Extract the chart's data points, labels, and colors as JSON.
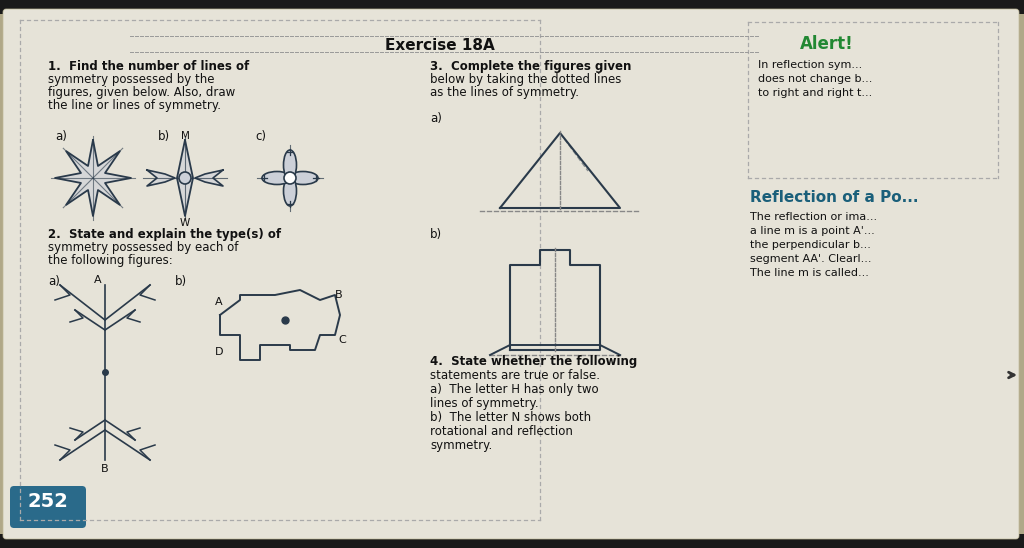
{
  "title": "Exercise 18A",
  "bg_main": "#e0ddd4",
  "bg_panel": "#d8d4c8",
  "text_dark": "#111111",
  "shape_color": "#2a3a4a",
  "teal": "#1a5f7a",
  "green": "#228833",
  "q1_lines": [
    "1.  Find the number of lines of",
    "symmetry possessed by the",
    "figures, given below. Also, draw",
    "the line or lines of symmetry."
  ],
  "q2_lines": [
    "2.  State and explain the type(s) of",
    "symmetry possessed by each of",
    "the following figures:"
  ],
  "q3_lines": [
    "3.  Complete the figures given",
    "below by taking the dotted lines",
    "as the lines of symmetry."
  ],
  "q4_lines": [
    "4.  State whether the following",
    "statements are true or false.",
    "a)  The letter H has only two",
    "lines of symmetry.",
    "b)  The letter N shows both",
    "rotational and reflection",
    "symmetry."
  ],
  "alert_title": "Alert!",
  "alert_lines": [
    "In reflection sym...",
    "does not change b...",
    "to right and right t..."
  ],
  "reflect_title": "Reflection of a Po...",
  "reflect_lines": [
    "The reflection or ima...",
    "a line m is a point A'...",
    "the perpendicular b...",
    "segment AA'. Clearl...",
    "The line m is called..."
  ],
  "page_num": "252"
}
